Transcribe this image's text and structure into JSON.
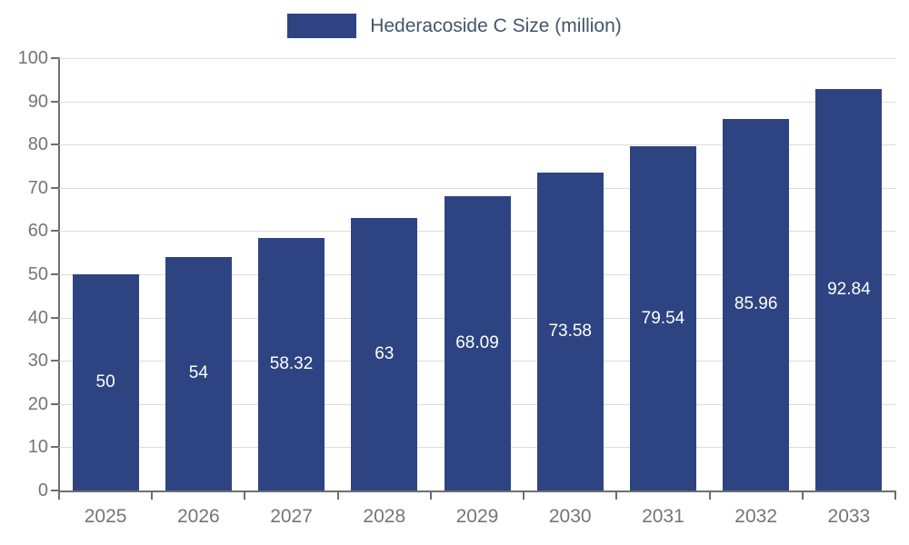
{
  "legend": {
    "label": "Hederacoside C Size (million)"
  },
  "chart_data": {
    "type": "bar",
    "title": "Hederacoside C Size (million)",
    "categories": [
      "2025",
      "2026",
      "2027",
      "2028",
      "2029",
      "2030",
      "2031",
      "2032",
      "2033"
    ],
    "values": [
      50,
      54,
      58.32,
      63,
      68.09,
      73.58,
      79.54,
      85.96,
      92.84
    ],
    "value_labels": [
      "50",
      "54",
      "58.32",
      "63",
      "68.09",
      "73.58",
      "79.54",
      "85.96",
      "92.84"
    ],
    "xlabel": "",
    "ylabel": "",
    "ylim": [
      0,
      100
    ],
    "ytick_interval": 10,
    "grid": true,
    "legend_position": "top",
    "bar_color": "#2e4482",
    "value_label_color": "#ffffff",
    "axis_label_color": "#757575"
  }
}
